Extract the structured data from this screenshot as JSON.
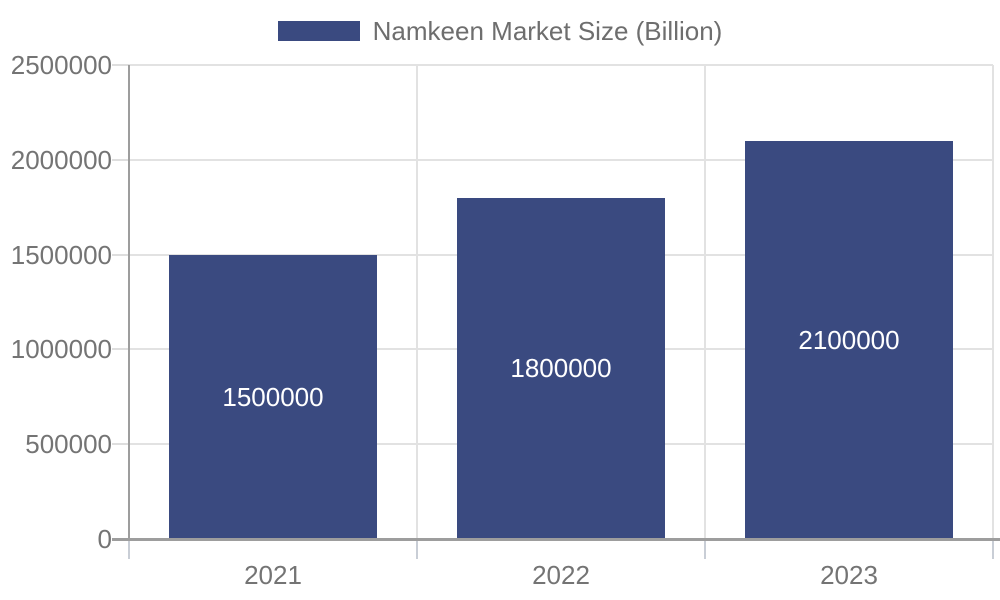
{
  "legend": {
    "label": "Namkeen Market Size (Billion)"
  },
  "chart_data": {
    "type": "bar",
    "title": "",
    "xlabel": "",
    "ylabel": "",
    "series_name": "Namkeen Market Size (Billion)",
    "categories": [
      "2021",
      "2022",
      "2023"
    ],
    "values": [
      1500000,
      1800000,
      2100000
    ],
    "bar_labels": [
      "1500000",
      "1800000",
      "2100000"
    ],
    "ylim": [
      0,
      2500000
    ],
    "yticks": [
      0,
      500000,
      1000000,
      1500000,
      2000000,
      2500000
    ],
    "ytick_labels": [
      "0",
      "500000",
      "1000000",
      "1500000",
      "2000000",
      "2500000"
    ],
    "grid": true,
    "legend_position": "top-center",
    "theme": {
      "bar_color": "#3a4a80",
      "bar_label_color": "#ffffff",
      "grid_color": "#e2e2e2",
      "axis_color": "#9d9d9d",
      "y_tick_color": "#dedede",
      "x_tick_color": "#c9ced6",
      "tick_text_color": "#747474",
      "legend_text_color": "#6e6e6e",
      "background": "#ffffff"
    }
  }
}
